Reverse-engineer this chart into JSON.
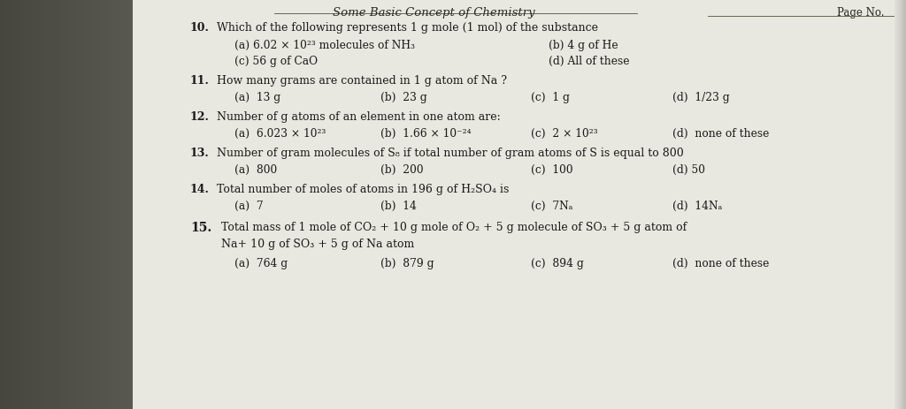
{
  "bg_color": "#7a7a72",
  "paper_color": "#dcdbd5",
  "paper_inner": "#e8e7e0",
  "title_text": "Some Basic Concept of Chemistry",
  "page_no_text": "Page No.",
  "text_color": "#1a1a1a",
  "title_color": "#2a2a2a",
  "line_color": "#555555",
  "font_size_title": 9.5,
  "font_size_q": 9.0,
  "font_size_opt": 8.8,
  "q10_text": "Which of the following represents 1 g mole (1 mol) of the substance",
  "q10_opts": [
    "(a) 6.02 × 10²³ molecules of NH₃",
    "(b) 4 g of He",
    "(c) 56 g of CaO",
    "(d) All of these"
  ],
  "q11_text": "How many grams are contained in 1 g atom of Na ?",
  "q11_opts": [
    "(a)  13 g",
    "(b)  23 g",
    "(c)  1 g",
    "(d)  1/23 g"
  ],
  "q12_text": "Number of g atoms of an element in one atom are:",
  "q12_opts": [
    "(a)  6.023 × 10²³",
    "(b)  1.66 × 10⁻²⁴",
    "(c)  2 × 10²³",
    "(d)  none of these"
  ],
  "q13_text": "Number of gram molecules of S₈ if total number of gram atoms of S is equal to 800",
  "q13_opts": [
    "(a)  800",
    "(b)  200",
    "(c)  100",
    "(d) 50"
  ],
  "q14_text": "Total number of moles of atoms in 196 g of H₂SO₄ is",
  "q14_opts": [
    "(a)  7",
    "(b)  14",
    "(c)  7Nₐ",
    "(d)  14Nₐ"
  ],
  "q15_text": "Total mass of 1 mole of CO₂ + 10 g mole of O₂ + 5 g molecule of SO₃ + 5 g atom of",
  "q15_text2": "Na+ 10 g of SO₃ + 5 g of Na atom",
  "q15_opts": [
    "(a)  764 g",
    "(b)  879 g",
    "(c)  894 g",
    "(d)  none of these"
  ]
}
